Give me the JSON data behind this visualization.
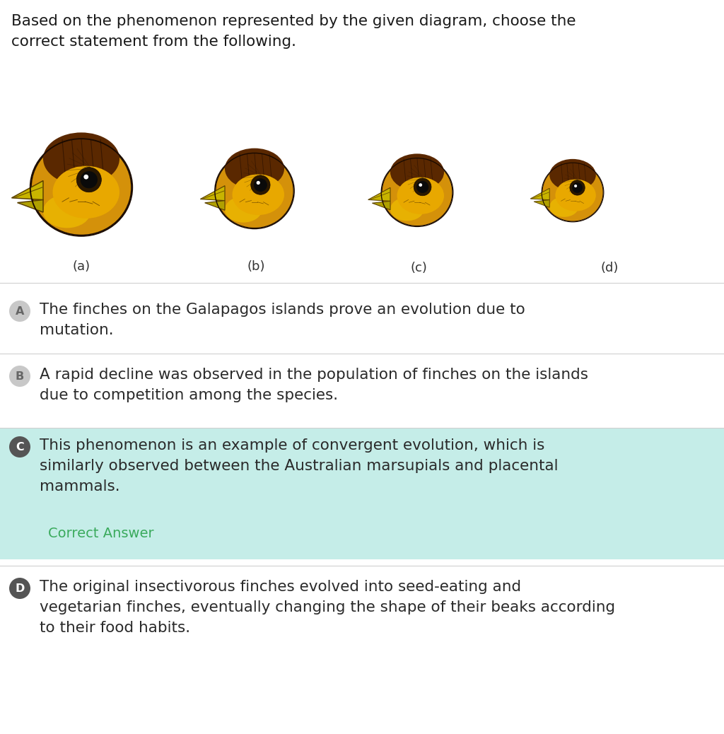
{
  "background_color": "#ffffff",
  "title_text": "Based on the phenomenon represented by the given diagram, choose the\ncorrect statement from the following.",
  "title_fontsize": 15.5,
  "title_color": "#1a1a1a",
  "option_A_label": "A",
  "option_A_text": "The finches on the Galapagos islands prove an evolution due to\nmutation.",
  "option_B_label": "B",
  "option_B_text": "A rapid decline was observed in the population of finches on the islands\ndue to competition among the species.",
  "option_C_label": "C",
  "option_C_text": "This phenomenon is an example of convergent evolution, which is\nsimilarly observed between the Australian marsupials and placental\nmammals.",
  "option_C_correct": "Correct Answer",
  "option_D_label": "D",
  "option_D_text": "The original insectivorous finches evolved into seed-eating and\nvegetarian finches, eventually changing the shape of their beaks according\nto their food habits.",
  "correct_answer_color": "#3aaa5c",
  "option_C_bg": "#c5ede8",
  "option_text_color": "#2a2a2a",
  "separator_color": "#d0d0d0",
  "bird_labels": [
    "(a)",
    "(b)",
    "(c)",
    "(d)"
  ],
  "bird_label_color": "#333333",
  "font_size_options": 15.5,
  "font_size_correct": 14.0,
  "circle_A_B_fill": "#c8c8c8",
  "circle_C_D_fill": "#555555",
  "circle_label_color_light": "#666666",
  "circle_label_color_dark": "#ffffff"
}
